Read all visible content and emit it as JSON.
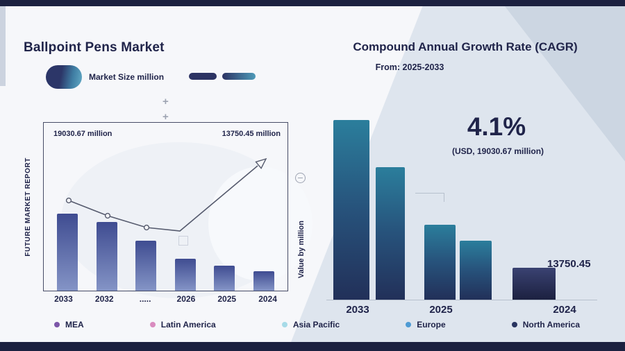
{
  "colors": {
    "navy": "#20244a",
    "frame": "#1c2140",
    "tealTop": "#2b7e9c"
  },
  "left_panel": {
    "title": "Ballpoint Pens Market",
    "legend_label": "Market Size million",
    "side_label": "FUTURE MARKET REPORT",
    "value_left": "19030.67 million",
    "value_right": "13750.45 million"
  },
  "right_panel": {
    "title": "Compound Annual Growth Rate (CAGR)",
    "subtitle": "From: 2025-2033",
    "cagr_value": "4.1%",
    "cagr_detail": "(USD, 19030.67 million)",
    "axis_label": "Value by million",
    "end_value_label": "13750.45"
  },
  "bottom_legend": [
    {
      "label": "MEA",
      "color": "#7c56a8"
    },
    {
      "label": "Latin America",
      "color": "#d98bbf"
    },
    {
      "label": "Asia Pacific",
      "color": "#a7dbe8"
    },
    {
      "label": "Europe",
      "color": "#4e9bd4"
    },
    {
      "label": "North America",
      "color": "#283460"
    }
  ],
  "chart_data": [
    {
      "type": "bar",
      "title": "Ballpoint Pens Market - Market Size million",
      "categories": [
        "2033",
        "2032",
        ".....",
        "2026",
        "2025",
        "2024"
      ],
      "values": [
        19030.67,
        18300,
        16550,
        14900,
        14314,
        13750.45
      ],
      "xlabel": "",
      "ylabel": "Market Size million",
      "ylim": [
        12000,
        19500
      ],
      "grid": false,
      "annotations": [
        "19030.67 million",
        "13750.45 million"
      ],
      "notes": "Bars descend from 2033 to 2024; decorative trend line with markers and upward arrow overlay; only 2033 (19030.67) and 2024 (13750.45) values are labeled, others estimated"
    },
    {
      "type": "bar",
      "title": "Compound Annual Growth Rate (CAGR) 4.1%, From: 2025-2033",
      "categories": [
        "2033",
        "",
        "2025",
        "",
        "2024"
      ],
      "values": [
        19030.67,
        17350,
        15280,
        14700,
        13750.45
      ],
      "xlabel": "",
      "ylabel": "Value by million",
      "ylim": [
        12600,
        19300
      ],
      "grid": false,
      "annotations": [
        "4.1%",
        "(USD, 19030.67 million)",
        "13750.45"
      ],
      "notes": "Only 2033 (19030.67) and 2024 (13750.45) values are labeled; intermediate bars estimated"
    }
  ]
}
